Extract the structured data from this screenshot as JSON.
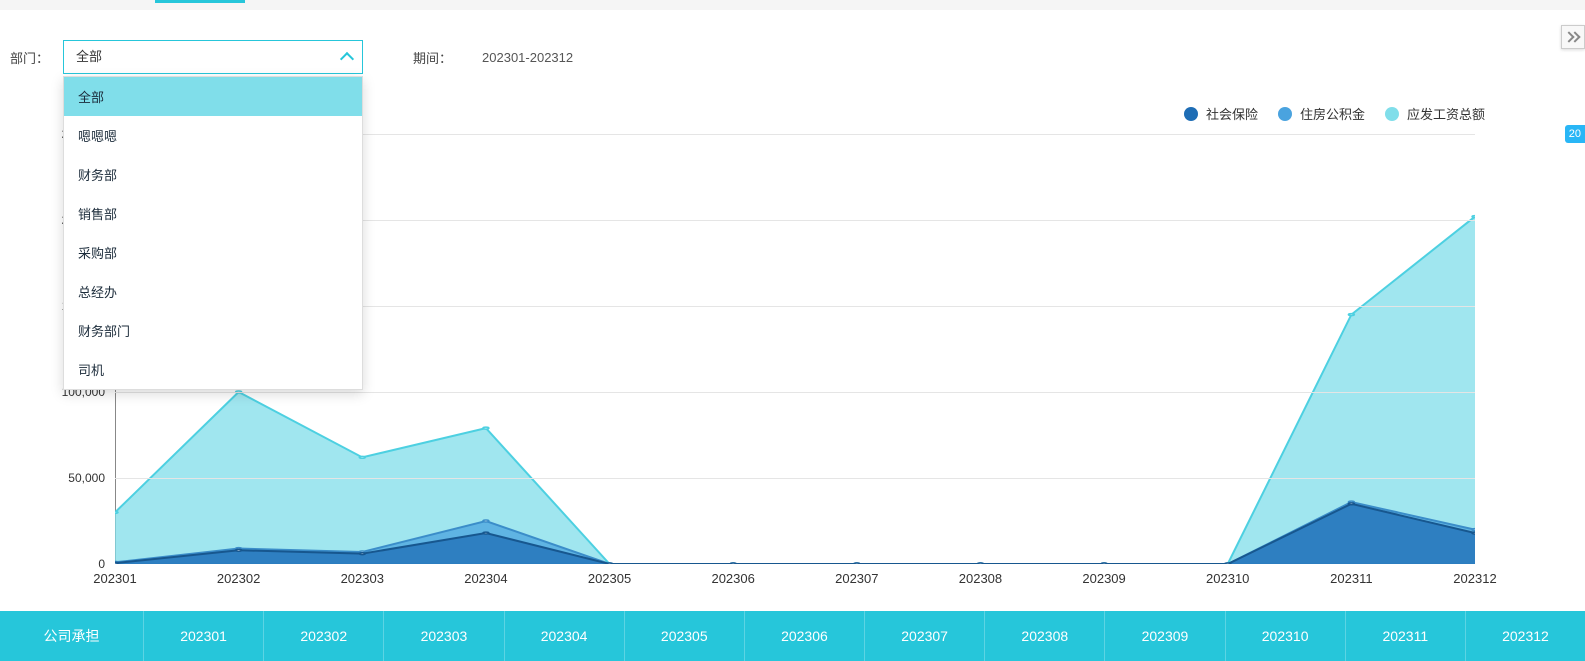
{
  "filters": {
    "dept_label": "部门：",
    "period_label": "期间：",
    "period_value": "202301-202312",
    "selected": "全部",
    "options": [
      "全部",
      "嗯嗯嗯",
      "财务部",
      "销售部",
      "采购部",
      "总经办",
      "财务部门",
      "司机"
    ]
  },
  "chart": {
    "type": "area",
    "legend": [
      {
        "label": "社会保险",
        "color": "#1e6db5"
      },
      {
        "label": "住房公积金",
        "color": "#4aa3df"
      },
      {
        "label": "应发工资总额",
        "color": "#80deea"
      }
    ],
    "ylim": [
      0,
      250000
    ],
    "ytick_step": 50000,
    "yticks": [
      "0",
      "50,000",
      "100,000",
      "150,000",
      "200,000",
      "250,000"
    ],
    "categories": [
      "202301",
      "202302",
      "202303",
      "202304",
      "202305",
      "202306",
      "202307",
      "202308",
      "202309",
      "202310",
      "202311",
      "202312"
    ],
    "series": [
      {
        "name": "应发工资总额",
        "color": "#80deea",
        "stroke": "#4dd0e1",
        "values": [
          30000,
          100000,
          62000,
          79000,
          0,
          0,
          0,
          0,
          0,
          0,
          145000,
          202000
        ]
      },
      {
        "name": "住房公积金",
        "color": "#4aa3df",
        "stroke": "#3b8dc9",
        "values": [
          1000,
          9000,
          7000,
          25000,
          0,
          0,
          0,
          0,
          0,
          0,
          36000,
          20000
        ]
      },
      {
        "name": "社会保险",
        "color": "#1e6db5",
        "stroke": "#17578f",
        "values": [
          500,
          8000,
          6000,
          18000,
          0,
          0,
          0,
          0,
          0,
          0,
          35000,
          18000
        ]
      }
    ],
    "grid_color": "#e5e5e5",
    "axis_color": "#888888",
    "marker_radius": 3,
    "area_opacity": 0.75,
    "label_fontsize": 13
  },
  "footer": {
    "row_label": "公司承担",
    "columns": [
      "202301",
      "202302",
      "202303",
      "202304",
      "202305",
      "202306",
      "202307",
      "202308",
      "202309",
      "202310",
      "202311",
      "202312"
    ],
    "bg_color": "#26c6da"
  },
  "side_tag": "20",
  "colors": {
    "accent": "#26c6da",
    "select_border": "#26c6da",
    "dropdown_selected_bg": "#80deea"
  }
}
